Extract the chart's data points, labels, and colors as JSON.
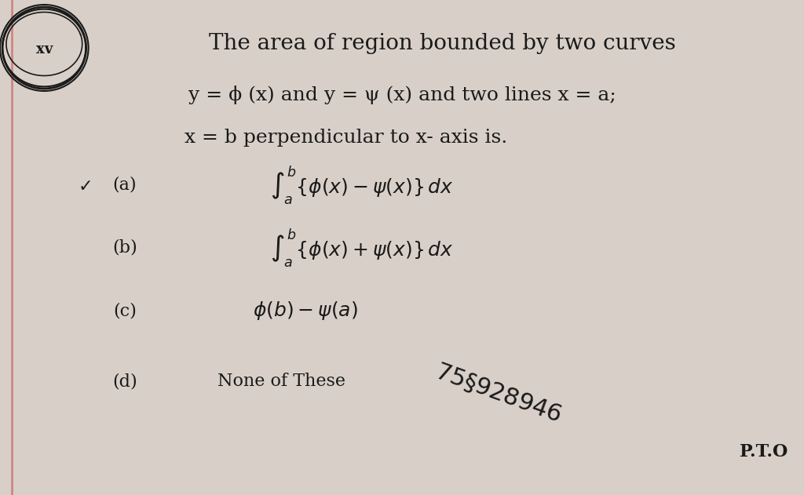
{
  "background_color": "#d8d0c8",
  "text_color": "#1a1a1a",
  "title_line1": "The area of region bounded by two curves",
  "title_line2": "y = ϕ (x) and y = ψ (x) and two lines x = a;",
  "title_line3": "x = b perpendicular to x- axis is.",
  "question_number": "xv",
  "option_a_label": "(a)",
  "option_a_text": "$\\int_a^b \\{\\phi(x) - \\psi(x)\\} \\, dx$",
  "option_b_label": "(b)",
  "option_b_text": "$\\int_a^b \\{\\phi(x) + \\psi(x)\\} \\, dx$",
  "option_c_label": "(c)",
  "option_c_text": "$\\phi(b) - \\psi(a)$",
  "option_d_label": "(d)",
  "option_d_text": "None of These",
  "footer_text": "P.T.O",
  "handwritten_text": "75§928946",
  "checkmark_near_a": true,
  "figsize": [
    10.24,
    6.31
  ],
  "dpi": 100
}
